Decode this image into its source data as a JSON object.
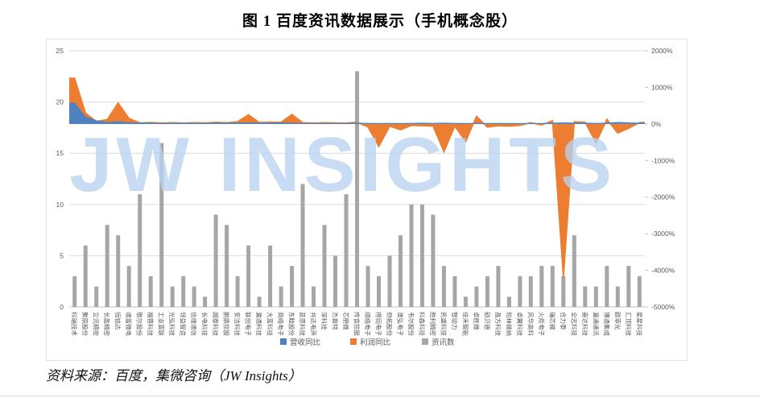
{
  "page": {
    "title": "图 1 百度资讯数据展示（手机概念股）",
    "watermark": "JW INSIGHTS",
    "source_note": "资料来源：百度，集微咨询（JW Insights）"
  },
  "chart_data": {
    "type": "combo-bar-area",
    "title": "图 1 百度资讯数据展示（手机概念股）",
    "grid": true,
    "legend_position": "bottom",
    "categories": [
      "科瑞技术",
      "聚辰股份",
      "立讯精密",
      "长盈精密",
      "恒铭达",
      "通富微电",
      "歌尔股份",
      "福蓉科技",
      "工业富联",
      "光弘科技",
      "领益智造",
      "信维通信",
      "长电科技",
      "闻泰科技",
      "鹏鼎控股",
      "安洁科技",
      "联创电子",
      "瀛通科技",
      "大富科技",
      "商络电子",
      "东睦股份",
      "蓝思科技",
      "共达电声",
      "深科技",
      "杰普特",
      "芯朋微",
      "传音控股",
      "顺络电子",
      "得润电子",
      "劲拓股份",
      "澳弘电子",
      "韦尔股份",
      "科森科技",
      "胜利精密",
      "凯盛科技",
      "智动力",
      "佳禾智能",
      "卓胜微",
      "硕贝德",
      "晶方科技",
      "和林微纳",
      "卓翼科技",
      "风华高科",
      "火炬电子",
      "瑞芯微",
      "合力泰",
      "全志科技",
      "奋达科技",
      "瀛通通讯",
      "博通集成",
      "欧菲光",
      "汇顶科技",
      "星星科技"
    ],
    "series": [
      {
        "name": "营收同比",
        "type": "area",
        "axis": "right",
        "color": "#4e81bd",
        "values": [
          570,
          185,
          90,
          40,
          60,
          35,
          25,
          20,
          15,
          20,
          15,
          20,
          15,
          25,
          20,
          25,
          30,
          20,
          20,
          30,
          20,
          15,
          10,
          15,
          15,
          10,
          20,
          15,
          10,
          15,
          10,
          15,
          20,
          15,
          20,
          15,
          10,
          10,
          10,
          15,
          10,
          10,
          15,
          10,
          20,
          30,
          25,
          20,
          15,
          20,
          40,
          30,
          20
        ]
      },
      {
        "name": "利润同比",
        "type": "area",
        "axis": "right",
        "color": "#ed7d31",
        "values": [
          1250,
          300,
          70,
          120,
          575,
          150,
          30,
          40,
          25,
          35,
          25,
          35,
          30,
          45,
          35,
          60,
          250,
          40,
          50,
          45,
          260,
          35,
          25,
          35,
          30,
          25,
          45,
          -80,
          -620,
          -60,
          -160,
          -40,
          -50,
          -60,
          -760,
          -60,
          -480,
          210,
          -90,
          -50,
          -60,
          -40,
          35,
          -30,
          90,
          -4200,
          60,
          45,
          -520,
          130,
          -250,
          -120,
          40
        ]
      },
      {
        "name": "资讯数",
        "type": "bar",
        "axis": "left",
        "color": "#a6a6a6",
        "values": [
          3,
          6,
          2,
          8,
          7,
          4,
          11,
          3,
          16,
          2,
          3,
          2,
          1,
          9,
          8,
          3,
          6,
          1,
          6,
          2,
          4,
          12,
          2,
          8,
          5,
          11,
          23,
          4,
          3,
          5,
          7,
          10,
          10,
          9,
          4,
          3,
          1,
          2,
          3,
          4,
          1,
          3,
          3,
          4,
          4,
          3,
          7,
          2,
          2,
          4,
          2,
          4,
          3
        ]
      }
    ],
    "left_axis": {
      "min": 0,
      "max": 25,
      "ticks": [
        0,
        5,
        10,
        15,
        20,
        25
      ]
    },
    "right_axis": {
      "min": -5000,
      "max": 2000,
      "tick_values": [
        2000,
        1000,
        0,
        -1000,
        -2000,
        -3000,
        -4000,
        -5000
      ],
      "ticks": [
        "2000%",
        "1000%",
        "0%",
        "-1000%",
        "-2000%",
        "-3000%",
        "-4000%",
        "-5000%"
      ]
    }
  },
  "colors": {
    "bar": "#a6a6a6",
    "profit": "#ed7d31",
    "revenue": "#4e81bd",
    "grid": "#dcdcdc",
    "axis_text": "#595959",
    "watermark": "#b9d3f2"
  }
}
